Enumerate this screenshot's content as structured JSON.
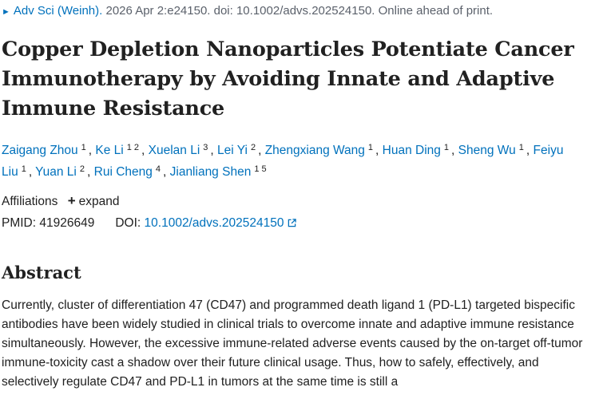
{
  "citation": {
    "journal": "Adv Sci (Weinh).",
    "details": "2026 Apr 2:e24150. doi: 10.1002/advs.202524150. Online ahead of print."
  },
  "title": "Copper Depletion Nanoparticles Potentiate Cancer Immunotherapy by Avoiding Innate and Adaptive Immune Resistance",
  "authors": [
    {
      "name": "Zaigang Zhou",
      "affiliations": [
        "1"
      ]
    },
    {
      "name": "Ke Li",
      "affiliations": [
        "1",
        "2"
      ]
    },
    {
      "name": "Xuelan Li",
      "affiliations": [
        "3"
      ]
    },
    {
      "name": "Lei Yi",
      "affiliations": [
        "2"
      ]
    },
    {
      "name": "Zhengxiang Wang",
      "affiliations": [
        "1"
      ]
    },
    {
      "name": "Huan Ding",
      "affiliations": [
        "1"
      ]
    },
    {
      "name": "Sheng Wu",
      "affiliations": [
        "1"
      ]
    },
    {
      "name": "Feiyu Liu",
      "affiliations": [
        "1"
      ]
    },
    {
      "name": "Yuan Li",
      "affiliations": [
        "2"
      ]
    },
    {
      "name": "Rui Cheng",
      "affiliations": [
        "4"
      ]
    },
    {
      "name": "Jianliang Shen",
      "affiliations": [
        "1",
        "5"
      ]
    }
  ],
  "affiliations": {
    "label": "Affiliations",
    "expand_label": "expand"
  },
  "ids": {
    "pmid_label": "PMID:",
    "pmid": "41926649",
    "doi_label": "DOI:",
    "doi": "10.1002/advs.202524150"
  },
  "abstract": {
    "heading": "Abstract",
    "text": "Currently, cluster of differentiation 47 (CD47) and programmed death ligand 1 (PD-L1) targeted bispecific antibodies have been widely studied in clinical trials to overcome innate and adaptive immune resistance simultaneously. However, the excessive immune-related adverse events caused by the on-target off-tumor immune-toxicity cast a shadow over their future clinical usage. Thus, how to safely, effectively, and selectively regulate CD47 and PD-L1 in tumors at the same time is still a"
  },
  "colors": {
    "link": "#0071bc",
    "text": "#212121",
    "muted": "#5b616b"
  },
  "icons": {
    "toggle": "chevron-right-icon",
    "expand": "plus-icon",
    "external": "external-link-icon"
  }
}
